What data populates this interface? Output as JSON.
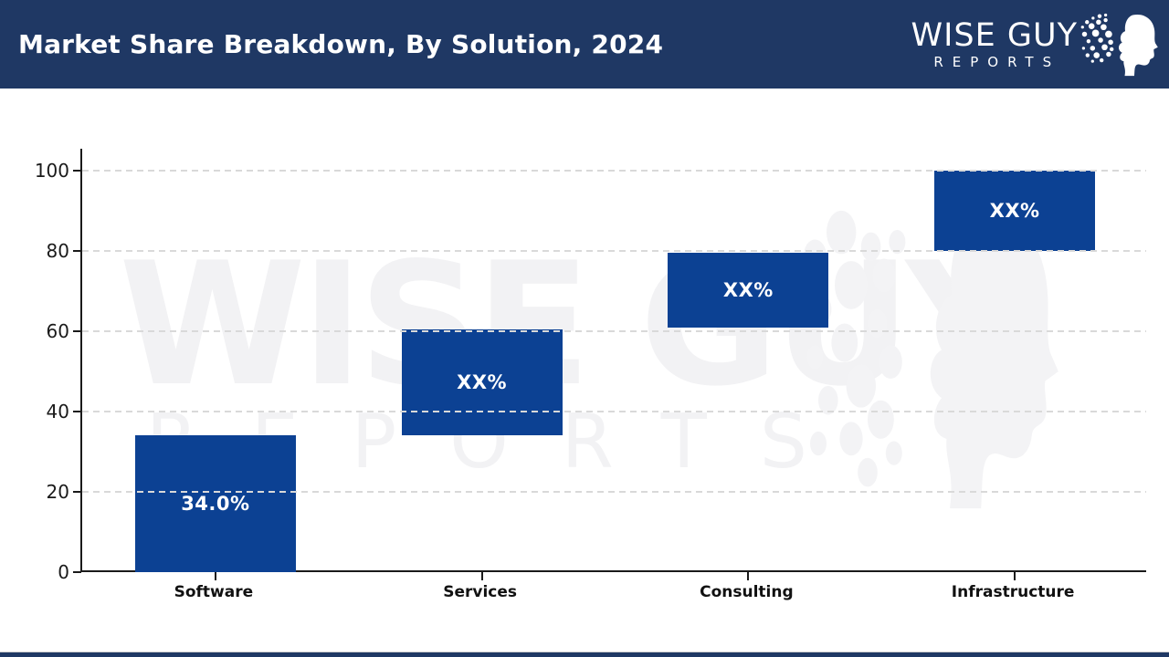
{
  "header": {
    "title": "Market Share Breakdown, By Solution, 2024",
    "logo": {
      "name": "WISE GUY",
      "subtitle": "REPORTS"
    }
  },
  "watermark": {
    "name": "WISE GUY",
    "subtitle": "REPORTS"
  },
  "colors": {
    "header_bg": "#1f3864",
    "footer_bg": "#1f3864",
    "bar_fill": "#0c4193",
    "bar_label": "#ffffff",
    "gridline": "#d9d9d9",
    "axis": "#1a1a1a",
    "watermark": "#f2f2f4"
  },
  "chart_data": {
    "type": "bar",
    "subtype": "waterfall",
    "title": "Market Share Breakdown, By Solution, 2024",
    "categories": [
      "Software",
      "Services",
      "Consulting",
      "Infrastructure"
    ],
    "series": [
      {
        "category": "Software",
        "base": 0,
        "top": 34,
        "value_label": "34.0%"
      },
      {
        "category": "Services",
        "base": 34,
        "top": 60.5,
        "value_label": "XX%"
      },
      {
        "category": "Consulting",
        "base": 61,
        "top": 79.5,
        "value_label": "XX%"
      },
      {
        "category": "Infrastructure",
        "base": 80,
        "top": 100,
        "value_label": "XX%"
      }
    ],
    "yticks": [
      0,
      20,
      40,
      60,
      80,
      100
    ],
    "ylim": [
      0,
      105
    ],
    "grid": "horizontal-dashed",
    "legend": "none"
  }
}
